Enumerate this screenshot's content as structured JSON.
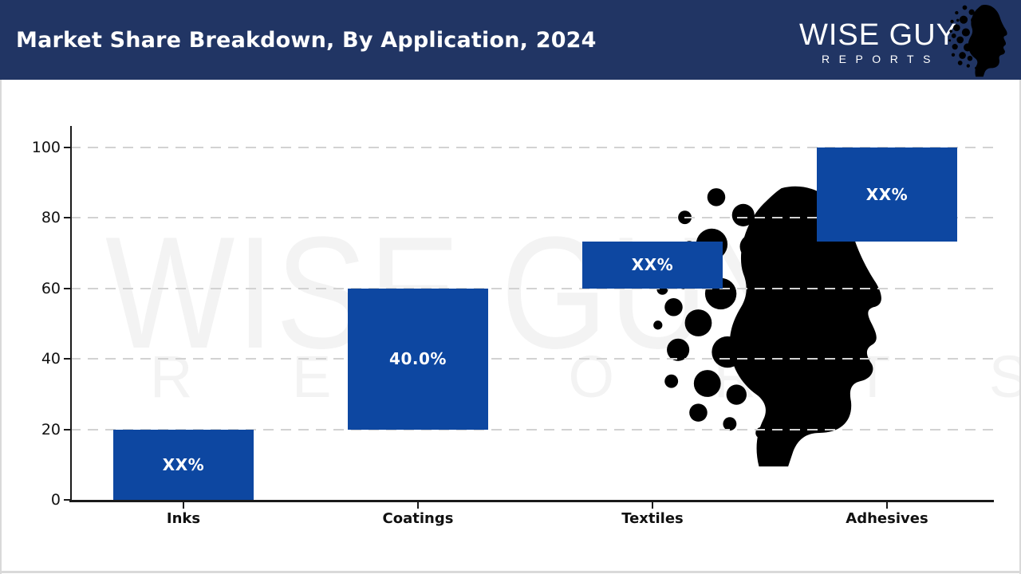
{
  "header": {
    "title": "Market Share Breakdown, By Application, 2024",
    "bg_color": "#213564",
    "logo": {
      "line1": "WISE GUY",
      "line2": "REPORTS"
    }
  },
  "watermark": {
    "line1": "WISE GUY",
    "line2": "R E P O R T S"
  },
  "chart_data": {
    "type": "bar",
    "subtype": "waterfall",
    "title": "Market Share Breakdown, By Application, 2024",
    "categories": [
      "Inks",
      "Coatings",
      "Textiles",
      "Adhesives"
    ],
    "segments": [
      {
        "category": "Inks",
        "start": 0,
        "end": 20,
        "value_label": "XX%"
      },
      {
        "category": "Coatings",
        "start": 20,
        "end": 60,
        "value_label": "40.0%"
      },
      {
        "category": "Textiles",
        "start": 60,
        "end": 73.3,
        "value_label": "XX%"
      },
      {
        "category": "Adhesives",
        "start": 73.3,
        "end": 100,
        "value_label": "XX%"
      }
    ],
    "y_ticks": [
      0,
      20,
      40,
      60,
      80,
      100
    ],
    "ylim": [
      0,
      100
    ],
    "xlabel": "",
    "ylabel": "",
    "bar_color": "#0d47a1",
    "grid": "horizontal-dashed",
    "legend": "none"
  }
}
